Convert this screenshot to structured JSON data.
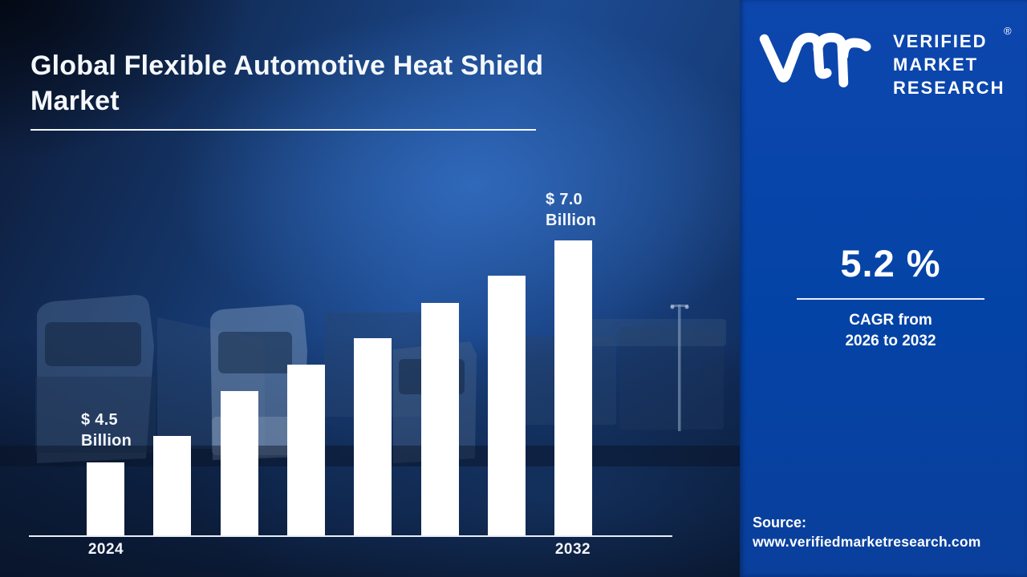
{
  "header": {
    "title_line1": "Global Flexible Automotive Heat Shield",
    "title_line2": "Market"
  },
  "brand": {
    "logo_glyph": "vmr-monogram",
    "name_line1": "VERIFIED",
    "name_line2": "MARKET",
    "name_line3": "RESEARCH",
    "registered_mark": "®"
  },
  "kpi": {
    "value": "5.2 %",
    "caption_line1": "CAGR from",
    "caption_line2": "2026 to 2032"
  },
  "source": {
    "label": "Source:",
    "url": "www.verifiedmarketresearch.com"
  },
  "colors": {
    "panel_blue": "#0046ab",
    "background_navy": "#0d1a36",
    "bar": "#ffffff",
    "text": "#ffffff"
  },
  "chart_data": {
    "type": "bar",
    "title": "Global Flexible Automotive Heat Shield Market",
    "unit": "USD Billion",
    "categories": [
      "2024",
      "",
      "",
      "",
      "",
      "",
      "",
      "2032"
    ],
    "values": [
      4.5,
      4.8,
      5.3,
      5.6,
      5.9,
      6.3,
      6.6,
      7.0
    ],
    "ylim": [
      4.5,
      7.0
    ],
    "gridlines": false,
    "value_axis_visible": false,
    "legend": "none",
    "bar_color": "#ffffff",
    "annotations": [
      {
        "target": "first-bar",
        "line1": "$ 4.5",
        "line2": "Billion"
      },
      {
        "target": "last-bar",
        "line1": "$ 7.0",
        "line2": "Billion"
      }
    ]
  }
}
